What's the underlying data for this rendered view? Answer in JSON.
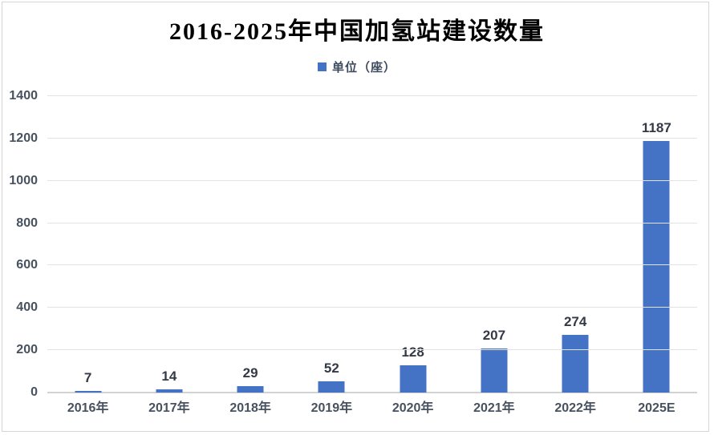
{
  "title": "2016-2025年中国加氢站建设数量",
  "legend": {
    "label": "单位（座）",
    "swatch_color": "#4472C4"
  },
  "colors": {
    "bar": "#4472C4",
    "gridline": "#e3e3e3",
    "axis_line": "#d2d2d2",
    "tick_label": "#47515f",
    "data_label": "#333a45",
    "title": "#000000",
    "frame_border": "#d6d6d6",
    "background": "#ffffff"
  },
  "chart_data": {
    "type": "bar",
    "title": "2016-2025年中国加氢站建设数量",
    "categories": [
      "2016年",
      "2017年",
      "2018年",
      "2019年",
      "2020年",
      "2021年",
      "2022年",
      "2025E"
    ],
    "values": [
      7,
      14,
      29,
      52,
      128,
      207,
      274,
      1187
    ],
    "series_name": "单位（座）",
    "xlabel": "",
    "ylabel": "",
    "ylim": [
      0,
      1400
    ],
    "yticks": [
      0,
      200,
      400,
      600,
      800,
      1000,
      1200,
      1400
    ],
    "grid": true,
    "legend_position": "top-center",
    "data_labels": true,
    "bar_color": "#4472C4"
  }
}
